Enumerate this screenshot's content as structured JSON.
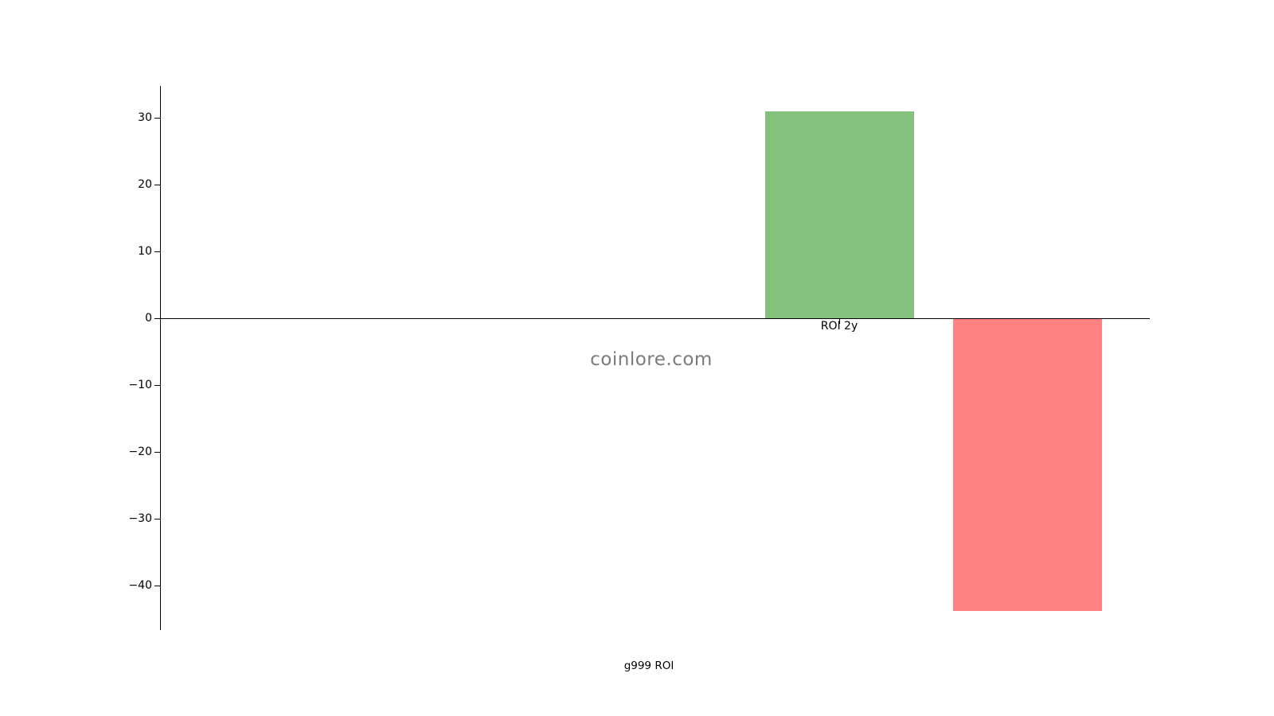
{
  "chart_data": {
    "type": "bar",
    "title": "g999 ROI",
    "categories": [
      "ROI 2y",
      ""
    ],
    "values": [
      31,
      -43.7
    ],
    "series": [
      {
        "name": "ROI 2y",
        "value": 31,
        "color": "#84c17d"
      },
      {
        "name": "",
        "value": -43.7,
        "color": "#ff8181"
      }
    ],
    "bar_colors": [
      "#84c17d",
      "#ff8181"
    ],
    "yticks": [
      30,
      20,
      10,
      0,
      -10,
      -20,
      -30,
      -40
    ],
    "ylim": [
      -46.7,
      34.8
    ],
    "xlabel": "",
    "ylabel": "",
    "grid": false,
    "legend": false,
    "axis_color": "#000000",
    "background_color": "#ffffff"
  },
  "watermark": {
    "text": "coinlore.com",
    "color": "#7b7b7b"
  }
}
